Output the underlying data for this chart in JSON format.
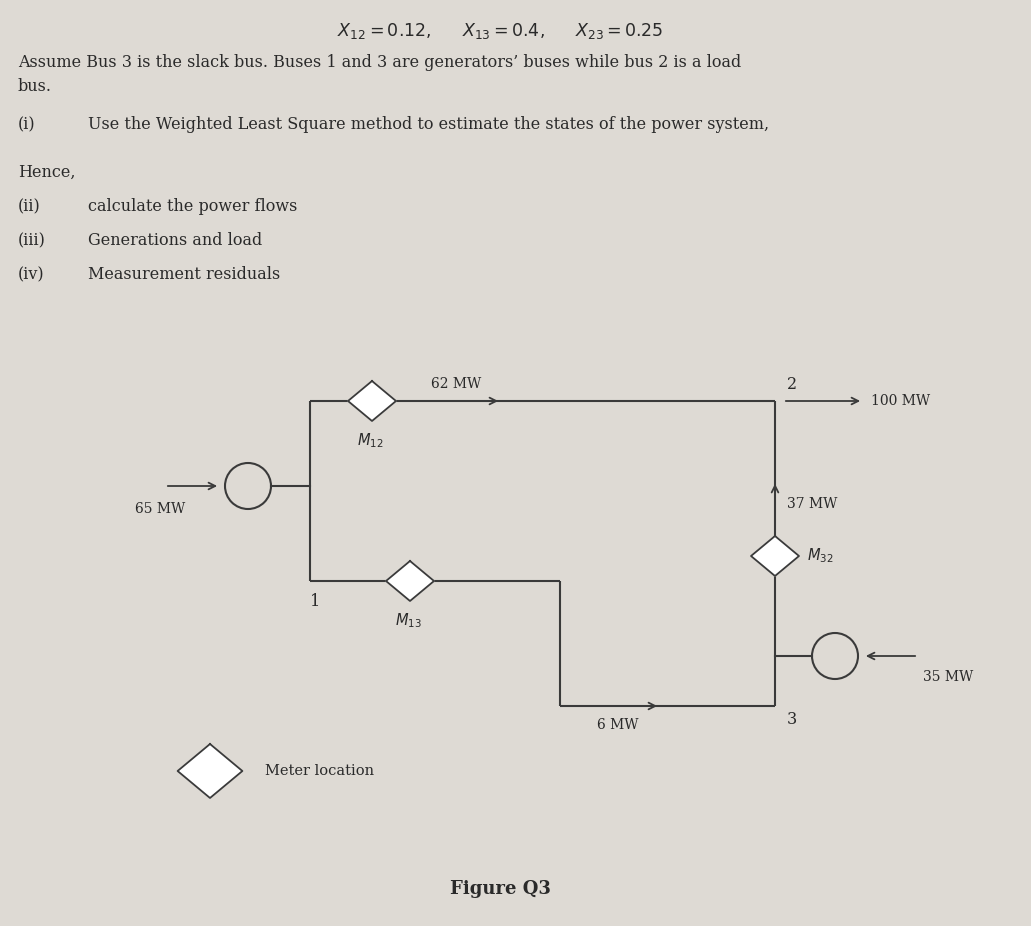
{
  "bg_color": "#dedad4",
  "text_color": "#2a2a2a",
  "line_color": "#3a3a3a",
  "title_math": "$X_{12} = 0.12,$     $X_{13} = 0.4,$     $X_{23} = 0.25$",
  "line1": "Assume Bus 3 is the slack bus. Buses 1 and 3 are generators’ buses while bus 2 is a load",
  "line2": "bus.",
  "line3_label": "(i)",
  "line3_text": "Use the Weighted Least Square method to estimate the states of the power system,",
  "hence": "Hence,",
  "line4_label": "(ii)",
  "line4_text": "calculate the power flows",
  "line5_label": "(iii)",
  "line5_text": "Generations and load",
  "line6_label": "(iv)",
  "line6_text": "Measurement residuals",
  "figure_label": "Figure Q3",
  "bus1_label": "1",
  "bus2_label": "2",
  "bus3_label": "3",
  "m12_label": "$M_{12}$",
  "m13_label": "$M_{13}$",
  "m32_label": "$M_{32}$",
  "meter_legend": "Meter location",
  "flow_65": "65 MW",
  "flow_62": "62 MW",
  "flow_37": "37 MW",
  "flow_100": "100 MW",
  "flow_6": "6 MW",
  "flow_35": "35 MW"
}
